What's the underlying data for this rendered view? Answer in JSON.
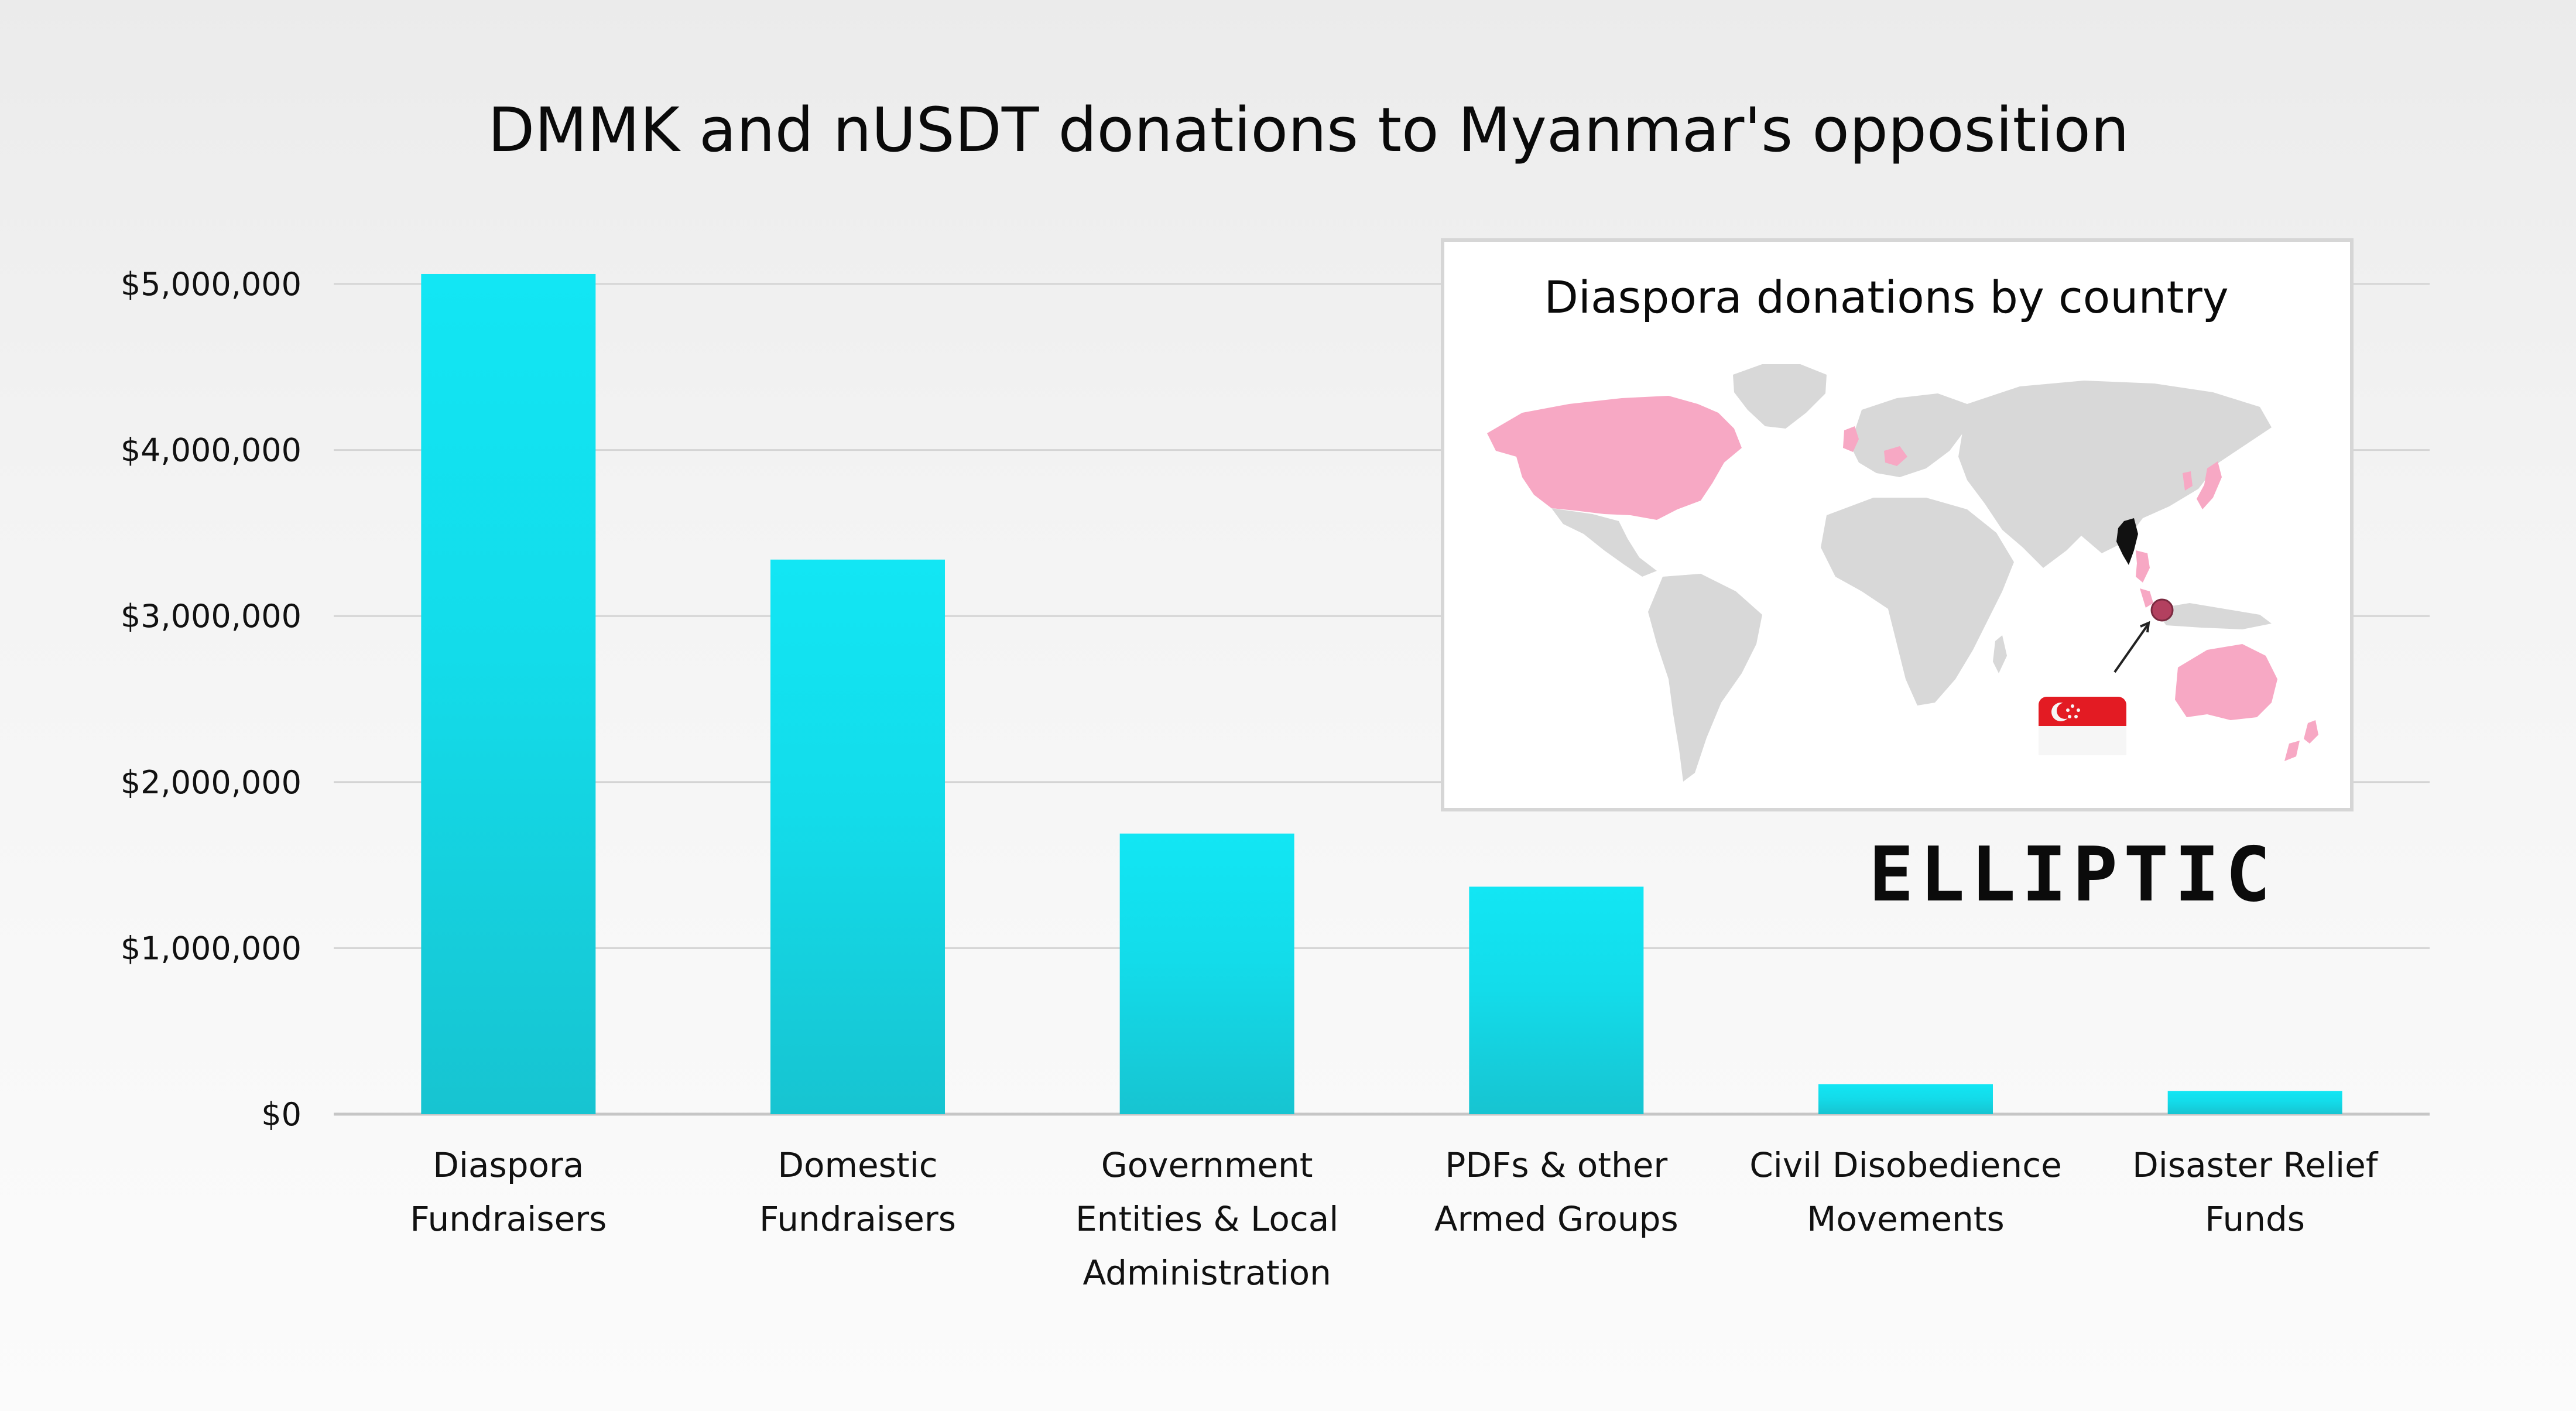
{
  "chart_data": {
    "type": "bar",
    "title": "DMMK and nUSDT donations to Myanmar's opposition",
    "xlabel": "",
    "ylabel": "",
    "ylim": [
      0,
      5000000
    ],
    "yticks": [
      {
        "value": 0,
        "label": "$0"
      },
      {
        "value": 1000000,
        "label": "$1,000,000"
      },
      {
        "value": 2000000,
        "label": "$2,000,000"
      },
      {
        "value": 3000000,
        "label": "$3,000,000"
      },
      {
        "value": 4000000,
        "label": "$4,000,000"
      },
      {
        "value": 5000000,
        "label": "$5,000,000"
      }
    ],
    "categories": [
      [
        "Diaspora",
        "Fundraisers"
      ],
      [
        "Domestic",
        "Fundraisers"
      ],
      [
        "Government",
        "Entities & Local",
        "Administration"
      ],
      [
        "PDFs & other",
        "Armed Groups"
      ],
      [
        "Civil Disobedience",
        "Movements"
      ],
      [
        "Disaster Relief",
        "Funds"
      ]
    ],
    "values": [
      5060000,
      3340000,
      1690000,
      1370000,
      180000,
      140000
    ],
    "grid": true,
    "legend": "none",
    "colors": {
      "bar_top": "#12e6f4",
      "bar_bottom": "#17c4d1",
      "grid": "#d4d4d4",
      "axis": "#c6c6c6"
    }
  },
  "inset": {
    "title": "Diaspora donations by country",
    "highlight_color": "#f7a8c4",
    "land_color": "#d8d8d8",
    "myanmar_color": "#111111",
    "singapore_marker_color": "#b3405f",
    "flag_icon": "singapore-flag-icon"
  },
  "logo": {
    "text": "ELLIPTIC"
  }
}
